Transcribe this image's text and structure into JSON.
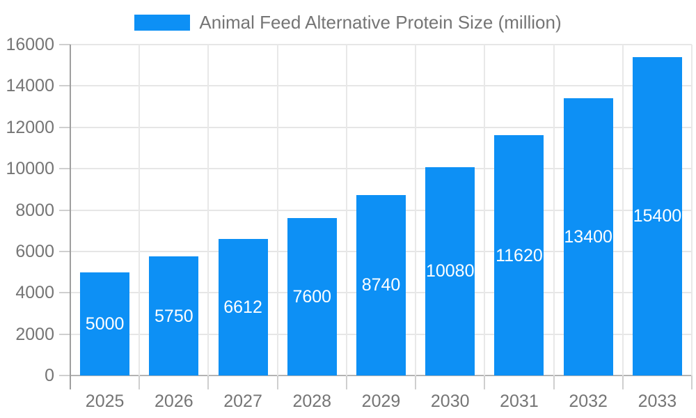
{
  "legend": {
    "label": "Animal Feed Alternative Protein Size (million)"
  },
  "chart_data": {
    "type": "bar",
    "title": "Animal Feed Alternative Protein Size (million)",
    "categories": [
      "2025",
      "2026",
      "2027",
      "2028",
      "2029",
      "2030",
      "2031",
      "2032",
      "2033"
    ],
    "values": [
      5000,
      5750,
      6612,
      7600,
      8740,
      10080,
      11620,
      13400,
      15400
    ],
    "value_labels": [
      "5000",
      "5750",
      "6612",
      "7600",
      "8740",
      "10080",
      "11620",
      "13400",
      "15400"
    ],
    "xlabel": "",
    "ylabel": "",
    "ylim": [
      0,
      16000
    ],
    "ytick_step": 2000,
    "yticks": [
      0,
      2000,
      4000,
      6000,
      8000,
      10000,
      12000,
      14000,
      16000
    ],
    "grid": true,
    "legend_position": "top-center",
    "colors": {
      "bar": "#0d90f5",
      "value_label": "#ffffff",
      "text": "#757575",
      "grid_h": "#e6e6e6",
      "grid_v": "#e8e8e8",
      "axis_y": "#9e9e9e",
      "axis_x": "#b3b3b3",
      "tick": "#cfcfcf"
    }
  }
}
